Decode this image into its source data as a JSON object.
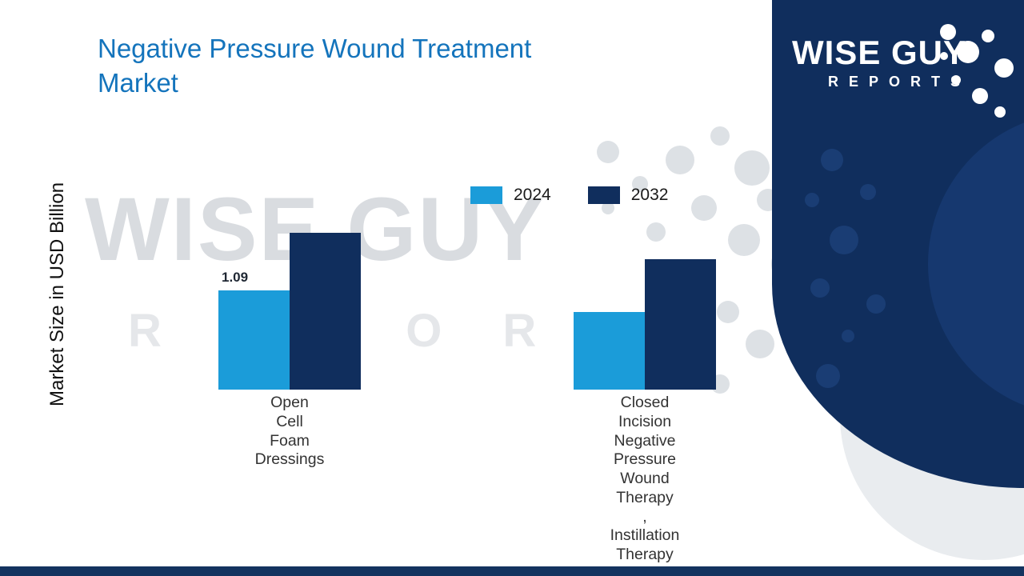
{
  "page": {
    "title": "Negative Pressure Wound Treatment Market"
  },
  "logo": {
    "brand_line1": "WISE GUY",
    "brand_line2": "REPORTS"
  },
  "watermark": {
    "line1": "WISE GUY",
    "line2": "REPORTS"
  },
  "chart_data": {
    "type": "bar",
    "title": "Negative Pressure Wound Treatment Market",
    "xlabel": "",
    "ylabel": "Market Size in USD Billion",
    "categories": [
      "Open Cell Foam Dressings",
      "Closed Incision Negative Pressure Wound Therapy , Instillation Therapy"
    ],
    "category_label_lines": [
      [
        "Open",
        "Cell",
        "Foam",
        "Dressings"
      ],
      [
        "Closed",
        "Incision",
        "Negative",
        "Pressure",
        "Wound",
        "Therapy",
        ",",
        "Instillation",
        "Therapy"
      ]
    ],
    "series": [
      {
        "name": "2024",
        "color": "#1B9CD9",
        "values": [
          1.09,
          0.85
        ]
      },
      {
        "name": "2032",
        "color": "#102E5D",
        "values": [
          1.72,
          1.43
        ]
      }
    ],
    "data_labels": [
      {
        "series": "2024",
        "category_index": 0,
        "text": "1.09"
      }
    ],
    "ylim": [
      0,
      2
    ],
    "grid": false,
    "axes_visible": false,
    "legend_position": "top-right"
  }
}
